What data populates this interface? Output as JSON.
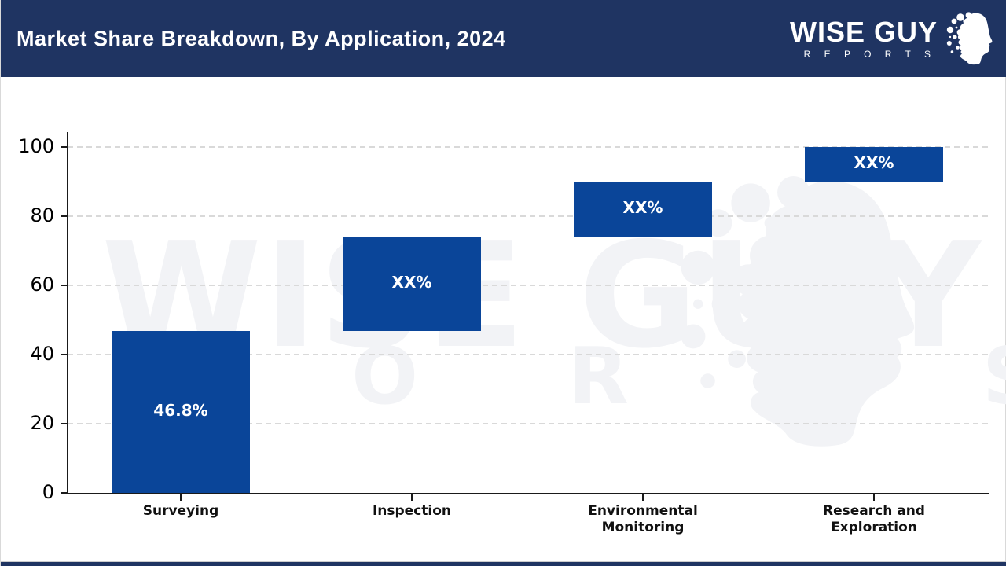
{
  "header": {
    "title": "Market Share Breakdown, By Application, 2024",
    "bg_color": "#1f3462",
    "logo": {
      "line1": "WISE GUY",
      "line2": "R E P O R T S"
    }
  },
  "watermark": {
    "line1": "WISE GU·Y",
    "line2": "P O R T S",
    "color": "#f2f3f6"
  },
  "chart_data": {
    "type": "bar",
    "subtype": "waterfall",
    "title": "Market Share Breakdown, By Application, 2024",
    "xlabel": "",
    "ylabel": "",
    "ylim": [
      0,
      104
    ],
    "yticks": [
      0,
      20,
      40,
      60,
      80,
      100
    ],
    "grid": "dashed-horizontal",
    "legend": "none",
    "bar_color": "#0a4599",
    "axis_color": "#1a1a1a",
    "grid_color": "#d9d9d9",
    "categories": [
      "Surveying",
      "Inspection",
      "Environmental Monitoring",
      "Research and Exploration"
    ],
    "x_tick_lines": [
      [
        "Surveying"
      ],
      [
        "Inspection"
      ],
      [
        "Environmental",
        "Monitoring"
      ],
      [
        "Research and",
        "Exploration"
      ]
    ],
    "segments": [
      {
        "category": "Surveying",
        "start": 0,
        "end": 46.8,
        "label": "46.8%"
      },
      {
        "category": "Inspection",
        "start": 46.8,
        "end": 74.1,
        "label": "XX%"
      },
      {
        "category": "Environmental Monitoring",
        "start": 74.1,
        "end": 89.8,
        "label": "XX%"
      },
      {
        "category": "Research and Exploration",
        "start": 89.8,
        "end": 100,
        "label": "XX%"
      }
    ]
  },
  "footer": {
    "bar_color": "#1f3462"
  }
}
